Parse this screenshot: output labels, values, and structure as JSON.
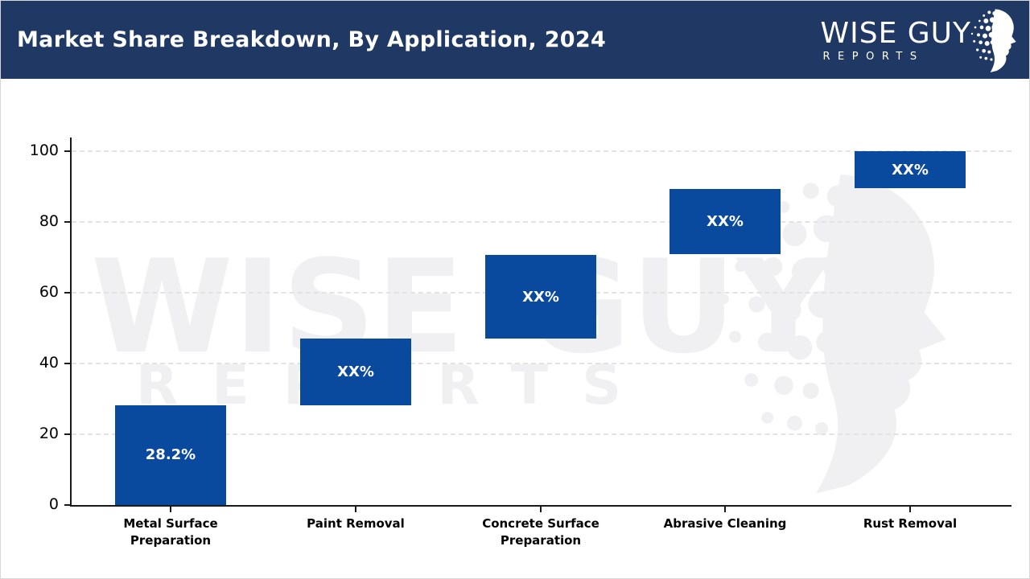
{
  "header": {
    "title": "Market Share Breakdown, By Application, 2024",
    "logo": {
      "wordmark": "WISE GUY",
      "subtext": "REPORTS"
    }
  },
  "watermark": {
    "wordmark": "WISE GUY",
    "subtext": "REPORTS"
  },
  "chart_data": {
    "type": "bar",
    "subtype": "floating-waterfall",
    "title": "Market Share Breakdown, By Application, 2024",
    "categories": [
      "Metal Surface Preparation",
      "Paint Removal",
      "Concrete Surface Preparation",
      "Abrasive Cleaning",
      "Rust Removal"
    ],
    "segments": [
      {
        "category": "Metal Surface Preparation",
        "start": 0,
        "end": 28.2,
        "label": "28.2%"
      },
      {
        "category": "Paint Removal",
        "start": 28.2,
        "end": 47.0,
        "label": "XX%"
      },
      {
        "category": "Concrete Surface Preparation",
        "start": 47.0,
        "end": 70.7,
        "label": "XX%"
      },
      {
        "category": "Abrasive Cleaning",
        "start": 70.9,
        "end": 89.3,
        "label": "XX%"
      },
      {
        "category": "Rust Removal",
        "start": 89.5,
        "end": 100.0,
        "label": "XX%"
      }
    ],
    "yticks": [
      0,
      20,
      40,
      60,
      80,
      100
    ],
    "ylim": [
      0,
      104
    ],
    "xlabel": "",
    "ylabel": "",
    "grid": "dashed-horizontal",
    "legend": "none"
  },
  "colors": {
    "header_bg": "#1f3864",
    "bar": "#0a4a9e",
    "bar_label": "#ffffff",
    "title_text": "#ffffff",
    "watermark": "#f0f0f3",
    "gridline": "#e3e3e3",
    "axis": "#1a1a1a",
    "page_bg": "#ffffff"
  }
}
